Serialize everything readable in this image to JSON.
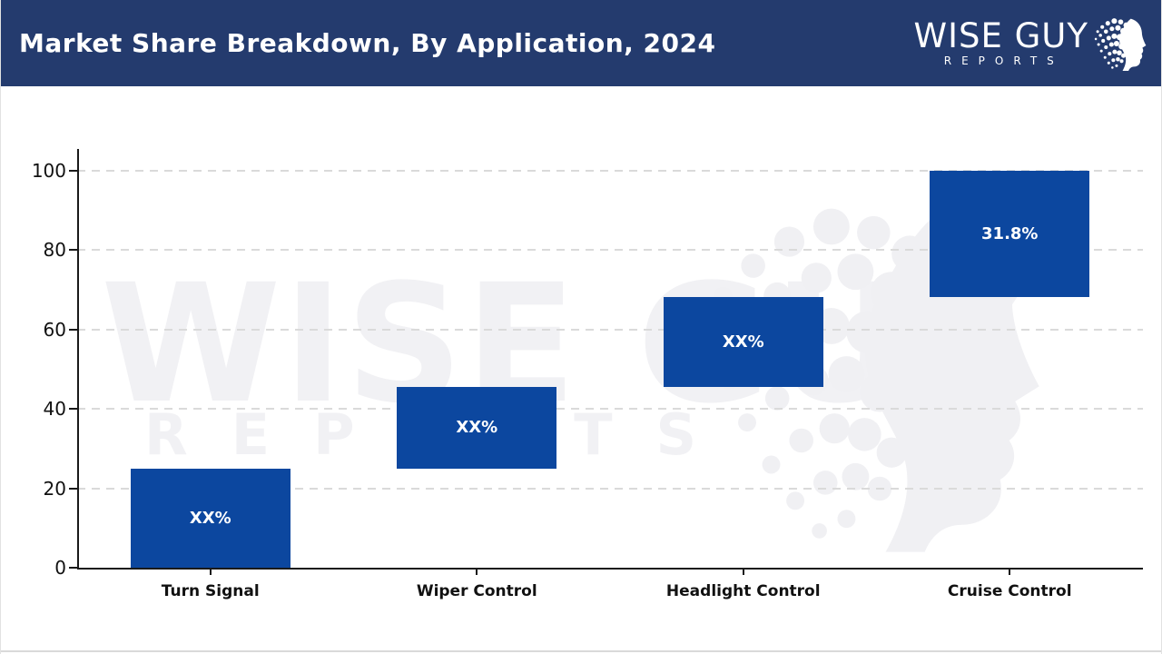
{
  "header": {
    "title": "Market Share Breakdown, By Application, 2024",
    "logo": {
      "brand": "WISE GUY",
      "sub": "REPORTS"
    }
  },
  "watermark": {
    "brand": "WISE GUY",
    "sub": "REPORTS"
  },
  "colors": {
    "header_bg": "#243b6e",
    "bar": "#0c479f",
    "bar_label": "#ffffff",
    "axis": "#1a1a1a",
    "gridline": "#dadada",
    "watermark": "#f1f1f4"
  },
  "chart_data": {
    "type": "bar",
    "subtype": "waterfall",
    "title": "Market Share Breakdown, By Application, 2024",
    "categories": [
      "Turn Signal",
      "Wiper Control",
      "Headlight Control",
      "Cruise Control"
    ],
    "segments": [
      {
        "category": "Turn Signal",
        "start": 0,
        "end": 25.0,
        "label": "XX%"
      },
      {
        "category": "Wiper Control",
        "start": 25.0,
        "end": 45.5,
        "label": "XX%"
      },
      {
        "category": "Headlight Control",
        "start": 45.5,
        "end": 68.2,
        "label": "XX%"
      },
      {
        "category": "Cruise Control",
        "start": 68.2,
        "end": 100,
        "label": "31.8%"
      }
    ],
    "yticks": [
      0,
      20,
      40,
      60,
      80,
      100
    ],
    "ylim": [
      0,
      105.5
    ],
    "xlabel": "",
    "ylabel": "",
    "grid": "horizontal-dashed",
    "legend": null
  }
}
